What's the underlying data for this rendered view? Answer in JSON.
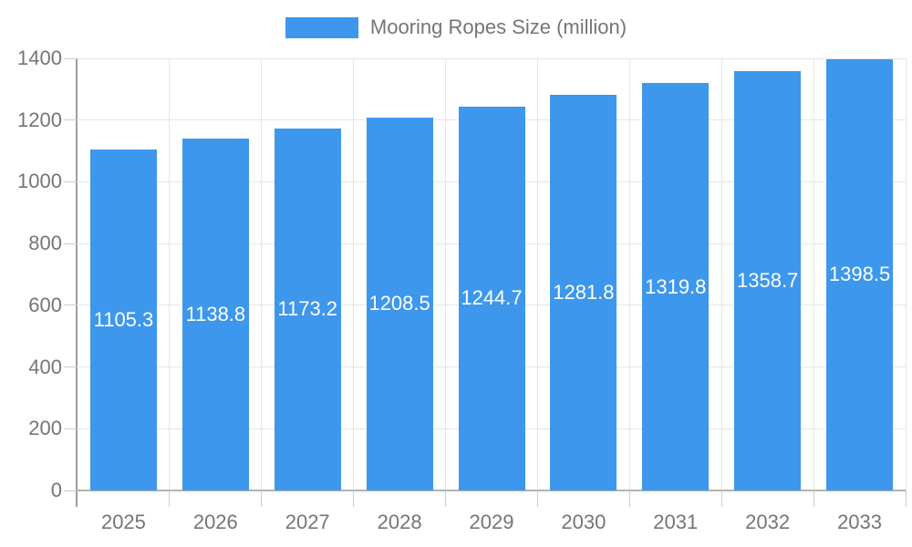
{
  "chart_data": {
    "type": "bar",
    "title": "Mooring Ropes Size (million)",
    "categories": [
      "2025",
      "2026",
      "2027",
      "2028",
      "2029",
      "2030",
      "2031",
      "2032",
      "2033"
    ],
    "values": [
      1105.3,
      1138.8,
      1173.2,
      1208.5,
      1244.7,
      1281.8,
      1319.8,
      1358.7,
      1398.5
    ],
    "value_labels": [
      "1105.3",
      "1138.8",
      "1173.2",
      "1208.5",
      "1244.7",
      "1281.8",
      "1319.8",
      "1358.7",
      "1398.5"
    ],
    "xlabel": "",
    "ylabel": "",
    "ylim": [
      0,
      1400
    ],
    "ytick_step": 200,
    "ytick_labels": [
      "0",
      "200",
      "400",
      "600",
      "800",
      "1000",
      "1200",
      "1400"
    ],
    "grid": true,
    "legend_position": "top",
    "colors": {
      "bar": "#3D97EC",
      "grid": "#E6E6E6",
      "axis": "#9E9E9E",
      "zero_line": "#B3B3B3",
      "tick": "#CCCCCC",
      "text": "#757575",
      "bar_label": "#FFFFFF",
      "background": "#FFFFFF"
    }
  }
}
